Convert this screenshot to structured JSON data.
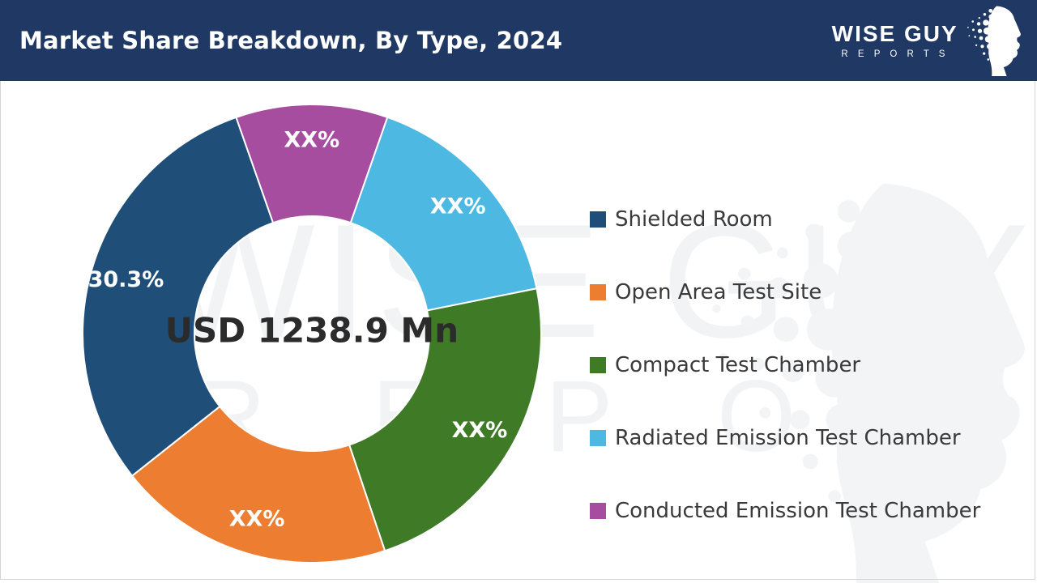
{
  "header": {
    "title": "Market Share Breakdown, By Type, 2024",
    "bg_color": "#1f3864"
  },
  "logo": {
    "line1": "WISE GUY",
    "line2": "R E P O R T S"
  },
  "watermark": {
    "line1": "WISE GUY",
    "line2": "R E P O R T S"
  },
  "chart_data": {
    "type": "pie",
    "subtype": "donut",
    "title": "Market Share Breakdown, By Type, 2024",
    "center_label": "USD 1238.9 Mn",
    "start_angle_deg": 109.3,
    "direction": "counterclockwise",
    "inner_radius_ratio": 0.51,
    "legend_position": "right",
    "note": "XX% slice values are masked on the chart; percentages below estimated from arc angles",
    "series": [
      {
        "name": "Shielded Room",
        "color": "#1f4e79",
        "label": "30.3%",
        "value_pct": 30.3,
        "value_shown": true
      },
      {
        "name": "Open Area Test Site",
        "color": "#ed7d31",
        "label": "XX%",
        "value_pct": 19.5,
        "value_shown": false
      },
      {
        "name": "Compact Test Chamber",
        "color": "#3f7a27",
        "label": "XX%",
        "value_pct": 23.0,
        "value_shown": false
      },
      {
        "name": "Radiated Emission Test Chamber",
        "color": "#4db8e2",
        "label": "XX%",
        "value_pct": 16.5,
        "value_shown": false
      },
      {
        "name": "Conducted Emission Test Chamber",
        "color": "#a64da0",
        "label": "XX%",
        "value_pct": 10.7,
        "value_shown": false
      }
    ]
  },
  "colors": {
    "header_bg": "#1f3864",
    "title_text": "#ffffff",
    "legend_text": "#3a3a3a",
    "center_text": "#2b2b2b",
    "frame_border": "#d5d5d8",
    "watermark": "#f2f3f5"
  }
}
